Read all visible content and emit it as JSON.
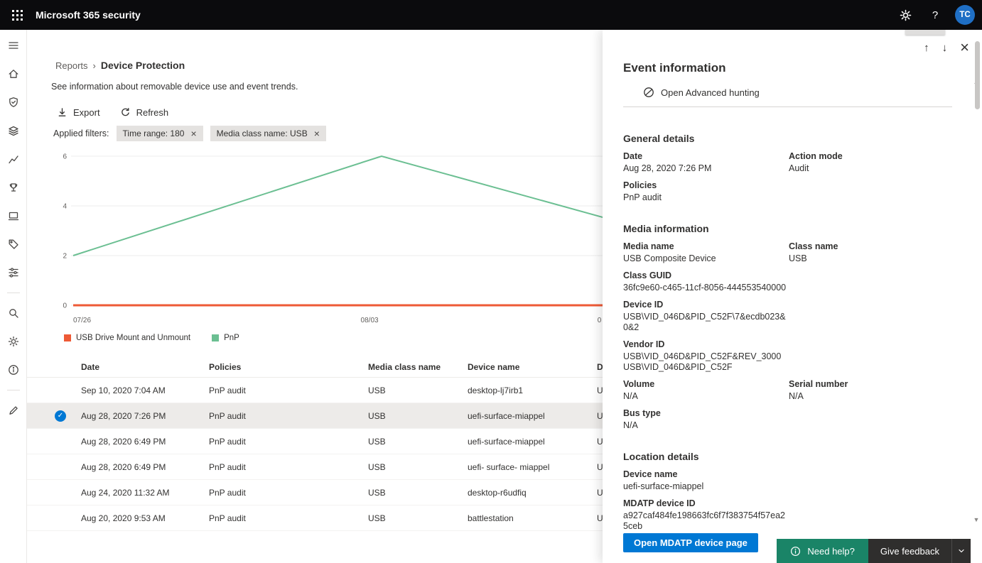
{
  "colors": {
    "accent": "#0078d4",
    "need_help_bg": "#1a8467",
    "feedback_bg": "#2f2e2d"
  },
  "topbar": {
    "title": "Microsoft 365 security",
    "help": "?",
    "avatar_initials": "TC"
  },
  "sidebar": {
    "icons": [
      "menu-icon",
      "home-icon",
      "shield-check-icon",
      "secure-score-icon",
      "reports-icon",
      "learning-hub-icon",
      "device-inventory-icon",
      "classification-icon",
      "filters-icon",
      "hunting-icon",
      "settings-icon",
      "info-icon",
      "edit-icon"
    ]
  },
  "breadcrumb": {
    "root": "Reports",
    "separator": "›",
    "current": "Device Protection"
  },
  "page": {
    "subtitle": "See information about removable device use and event trends."
  },
  "toolbar": {
    "export_label": "Export",
    "refresh_label": "Refresh"
  },
  "filters": {
    "label": "Applied filters:",
    "chips": [
      "Time range: 180",
      "Media class name: USB"
    ]
  },
  "chart_data": {
    "type": "line",
    "title": "",
    "xlabel": "",
    "ylabel": "",
    "ylim": [
      0,
      6
    ],
    "y_ticks": [
      6,
      4,
      2,
      0
    ],
    "x_ticks": [
      {
        "label": "07/26",
        "t": 0
      },
      {
        "label": "08/03",
        "t": 0.522
      },
      {
        "label": "0",
        "t": 0.952
      }
    ],
    "grid": "horizontal",
    "legend_position": "bottom-left",
    "series": [
      {
        "name": "USB Drive Mount and Unmount",
        "color": "#ee5a36",
        "points": [
          [
            0,
            0
          ],
          [
            1.05,
            0
          ]
        ]
      },
      {
        "name": "PnP",
        "color": "#6bbf92",
        "points": [
          [
            0,
            2
          ],
          [
            0.56,
            6
          ],
          [
            1.05,
            3.0
          ]
        ]
      }
    ]
  },
  "table": {
    "columns": [
      "Date",
      "Policies",
      "Media class name",
      "Device name",
      "D"
    ],
    "rows": [
      {
        "date": "Sep 10, 2020 7:04 AM",
        "policies": "PnP audit",
        "media": "USB",
        "device": "desktop-lj7irb1",
        "extra": "U",
        "selected": false
      },
      {
        "date": "Aug 28, 2020 7:26 PM",
        "policies": "PnP audit",
        "media": "USB",
        "device": "uefi-surface-miappel",
        "extra": "U",
        "selected": true
      },
      {
        "date": "Aug 28, 2020 6:49 PM",
        "policies": "PnP audit",
        "media": "USB",
        "device": "uefi-surface-miappel",
        "extra": "U",
        "selected": false
      },
      {
        "date": "Aug 28, 2020 6:49 PM",
        "policies": "PnP audit",
        "media": "USB",
        "device": "uefi- surface- miappel",
        "extra": "U",
        "selected": false
      },
      {
        "date": "Aug 24, 2020 11:32 AM",
        "policies": "PnP audit",
        "media": "USB",
        "device": "desktop-r6udfiq",
        "extra": "U",
        "selected": false
      },
      {
        "date": "Aug 20, 2020 9:53 AM",
        "policies": "PnP audit",
        "media": "USB",
        "device": "battlestation",
        "extra": "U",
        "selected": false
      }
    ]
  },
  "panel": {
    "title": "Event information",
    "open_hunting_label": "Open Advanced hunting",
    "sections": [
      {
        "heading": "General details",
        "rows": [
          [
            {
              "label": "Date",
              "value": "Aug 28, 2020 7:26 PM"
            },
            {
              "label": "Action mode",
              "value": "Audit"
            }
          ],
          [
            {
              "label": "Policies",
              "value": "PnP audit"
            }
          ]
        ]
      },
      {
        "heading": "Media information",
        "rows": [
          [
            {
              "label": "Media name",
              "value": "USB Composite Device"
            },
            {
              "label": "Class name",
              "value": "USB"
            }
          ],
          [
            {
              "label": "Class GUID",
              "value": "36fc9e60-c465-11cf-8056-444553540000"
            }
          ],
          [
            {
              "label": "Device ID",
              "value": "USB\\VID_046D&PID_C52F\\7&ecdb023&0&2"
            }
          ],
          [
            {
              "label": "Vendor ID",
              "value": "USB\\VID_046D&PID_C52F&REV_3000 USB\\VID_046D&PID_C52F"
            }
          ],
          [
            {
              "label": "Volume",
              "value": "N/A"
            },
            {
              "label": "Serial number",
              "value": "N/A"
            }
          ],
          [
            {
              "label": "Bus type",
              "value": "N/A"
            }
          ]
        ]
      },
      {
        "heading": "Location details",
        "rows": [
          [
            {
              "label": "Device name",
              "value": "uefi-surface-miappel"
            }
          ],
          [
            {
              "label": "MDATP device ID",
              "value": "a927caf484fe198663fc6f7f383754f57ea25ceb"
            }
          ]
        ]
      }
    ],
    "footer_button": "Open MDATP device page"
  },
  "help": {
    "need_help": "Need help?",
    "give_feedback": "Give feedback"
  }
}
